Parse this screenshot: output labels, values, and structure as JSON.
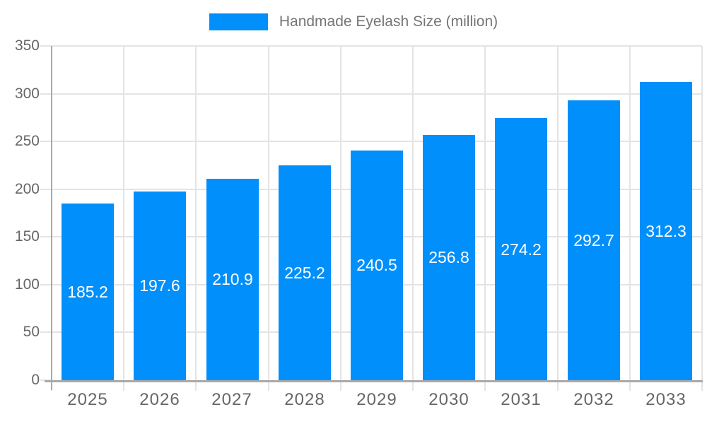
{
  "legend": {
    "label": "Handmade Eyelash Size (million)"
  },
  "colors": {
    "bar": "#008FFB",
    "grid": "#e4e4e4",
    "axis": "#a9a9a9",
    "tickLabel": "#666666",
    "legendText": "#757575",
    "barLabel": "#ffffff",
    "bg": "#ffffff"
  },
  "chart_data": {
    "type": "bar",
    "title": "Handmade Eyelash Size (million)",
    "categories": [
      "2025",
      "2026",
      "2027",
      "2028",
      "2029",
      "2030",
      "2031",
      "2032",
      "2033"
    ],
    "series": [
      {
        "name": "Handmade Eyelash Size (million)",
        "values": [
          185.2,
          197.6,
          210.9,
          225.2,
          240.5,
          256.8,
          274.2,
          292.7,
          312.3
        ]
      }
    ],
    "value_labels": [
      "185.2",
      "197.6",
      "210.9",
      "225.2",
      "240.5",
      "256.8",
      "274.2",
      "292.7",
      "312.3"
    ],
    "xlabel": "",
    "ylabel": "",
    "ylim": [
      0,
      350
    ],
    "ytick_interval": 50,
    "yticks": [
      0,
      50,
      100,
      150,
      200,
      250,
      300,
      350
    ],
    "grid": true,
    "legend_position": "top",
    "value_label_position": "inside-center"
  }
}
